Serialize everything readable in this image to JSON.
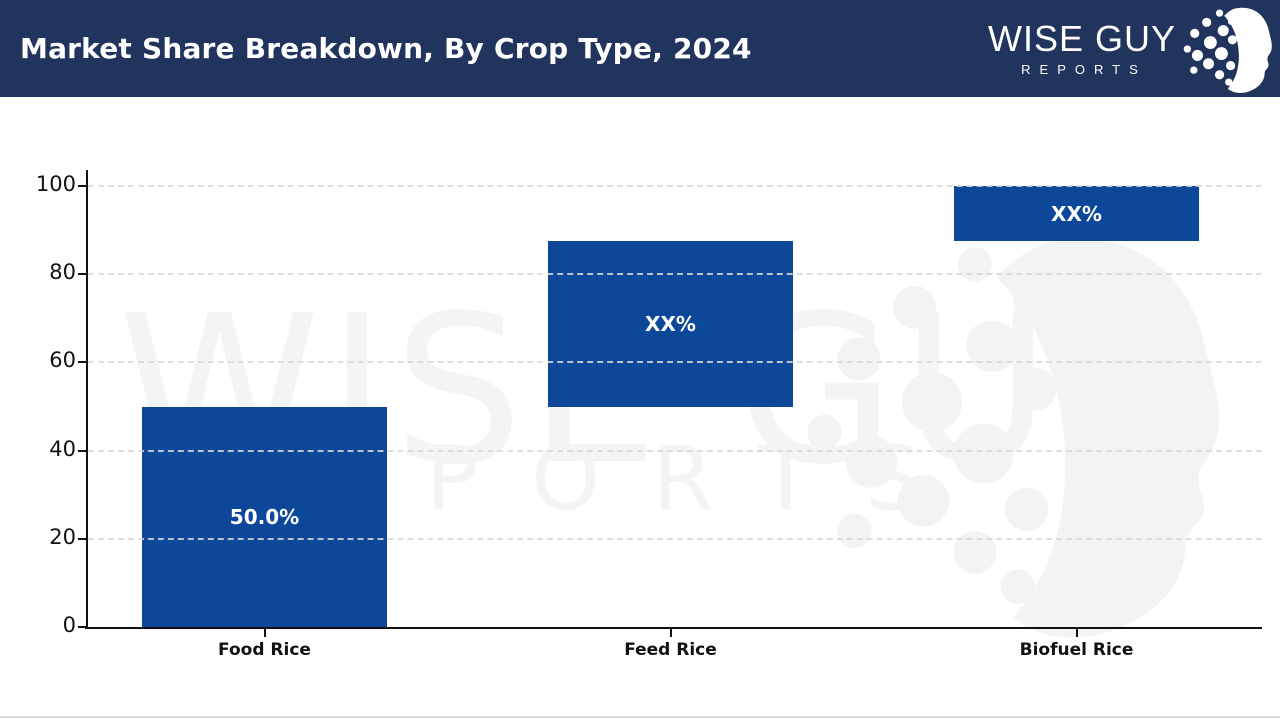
{
  "header": {
    "title": "Market Share Breakdown, By Crop Type, 2024",
    "bg_color": "#20345E",
    "logo": {
      "line1": "WISE GUY",
      "line2": "REPORTS"
    }
  },
  "watermark": {
    "line1": "WISE GUY",
    "line2": "REPORTS"
  },
  "chart_data": {
    "type": "bar",
    "subtype": "waterfall",
    "title": "Market Share Breakdown, By Crop Type, 2024",
    "categories": [
      "Food Rice",
      "Feed Rice",
      "Biofuel Rice"
    ],
    "segments": [
      {
        "category": "Food Rice",
        "start": 0,
        "end": 50,
        "label": "50.0%"
      },
      {
        "category": "Feed Rice",
        "start": 50,
        "end": 87.5,
        "label": "XX%"
      },
      {
        "category": "Biofuel Rice",
        "start": 87.5,
        "end": 100,
        "label": "XX%"
      }
    ],
    "yticks": [
      0,
      20,
      40,
      60,
      80,
      100
    ],
    "ylim": [
      0,
      100
    ],
    "grid": "horizontal dashed, drawn over bars",
    "bar_color": "#0D4799",
    "value_label_color": "#FFFFFF",
    "axis_color": "#111111",
    "gridline_color": "#D9D9D9",
    "legend": "none"
  }
}
